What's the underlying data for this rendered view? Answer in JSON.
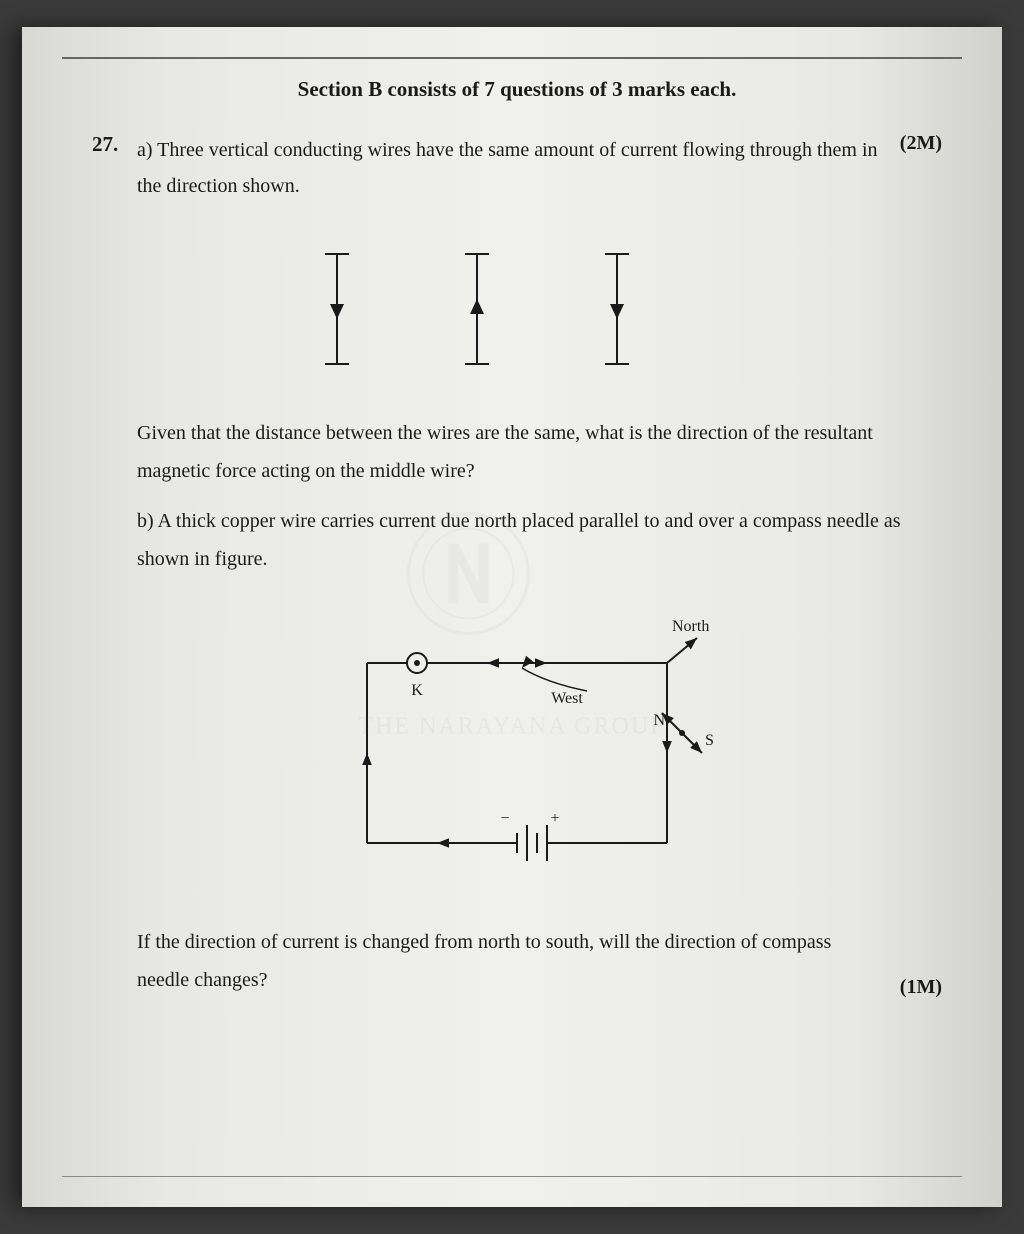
{
  "section_header": "Section B consists of 7 questions of 3 marks each.",
  "question_number": "27.",
  "part_a": "a) Three vertical conducting wires have the same amount of current flowing through them in the direction shown.",
  "marks_a": "(2M)",
  "given_text": "Given that the distance between the wires are the same, what is the direction of the resultant magnetic force acting on the middle wire?",
  "part_b": "b) A thick copper wire carries current due north placed parallel to and over a compass needle as shown in figure.",
  "final_q": "If the direction of current is changed from north to south, will the direction of compass needle changes?",
  "marks_b": "(1M)",
  "wires_diagram": {
    "type": "diagram",
    "wire_count": 3,
    "wire_directions": [
      "down",
      "up",
      "down"
    ],
    "line_color": "#1a1a1a",
    "stroke_width": 2,
    "spacing": 140,
    "wire_height": 110,
    "arrow_size": 10
  },
  "circuit_diagram": {
    "type": "diagram",
    "labels": {
      "north": "North",
      "west": "West",
      "k": "K",
      "n": "N",
      "s": "S",
      "battery_neg": "−",
      "battery_pos": "+"
    },
    "line_color": "#1a1a1a",
    "stroke_width": 2,
    "font_size": 16
  },
  "watermark_text": "THE NARAYANA GROUP"
}
